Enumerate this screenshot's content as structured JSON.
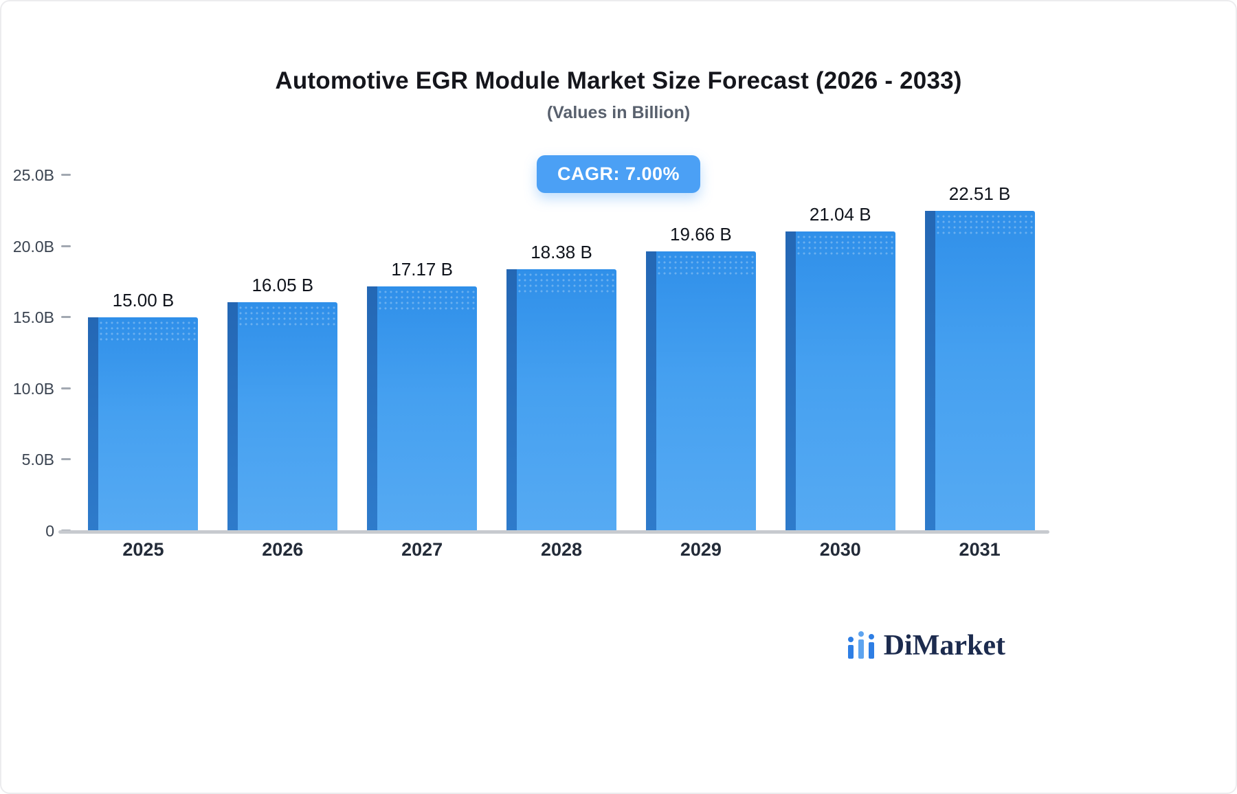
{
  "header": {
    "title": "Automotive EGR Module Market Size Forecast (2026 - 2033)",
    "subtitle": "(Values in Billion)"
  },
  "badge": {
    "label": "CAGR: 7.00%",
    "color": "#4BA0F5"
  },
  "chart_data": {
    "type": "bar",
    "categories": [
      "2025",
      "2026",
      "2027",
      "2028",
      "2029",
      "2030",
      "2031"
    ],
    "values": [
      15.0,
      16.05,
      17.17,
      18.38,
      19.66,
      21.04,
      22.51
    ],
    "value_labels": [
      "15.00 B",
      "16.05 B",
      "17.17 B",
      "18.38 B",
      "19.66 B",
      "21.04 B",
      "22.51 B"
    ],
    "title": "Automotive EGR Module Market Size Forecast (2026 - 2033)",
    "xlabel": "",
    "ylabel": "",
    "ylim": [
      0,
      25
    ],
    "yticks": [
      "25.0B",
      "20.0B",
      "15.0B",
      "10.0B",
      "5.0B",
      "0"
    ],
    "ytick_values": [
      25,
      20,
      15,
      10,
      5,
      0
    ],
    "grid": false,
    "legend": false,
    "bar_color": "#3D9BF0",
    "bar_edge_color": "#2467B4"
  },
  "footer": {
    "brand": "DiMarket",
    "brand_color": "#1c2b4e",
    "icon_color": "#2E7EE4"
  }
}
